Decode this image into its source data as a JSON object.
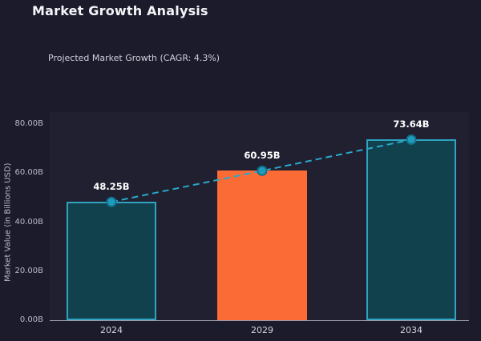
{
  "chart_data": {
    "type": "bar",
    "title": "Market Growth Analysis",
    "subtitle": "Projected Market Growth (CAGR: 4.3%)",
    "xlabel": "",
    "ylabel": "Market Value (in Billions USD)",
    "categories": [
      "2024",
      "2029",
      "2034"
    ],
    "values": [
      48.25,
      60.95,
      73.64
    ],
    "value_labels": [
      "48.25B",
      "60.95B",
      "73.64B"
    ],
    "yticks": [
      0,
      20,
      40,
      60,
      80
    ],
    "ytick_labels": [
      "0.00B",
      "20.00B",
      "40.00B",
      "60.00B",
      "80.00B"
    ],
    "ylim": [
      0,
      80
    ],
    "grid": false,
    "legend": false,
    "background_color": "#1b1b2c",
    "bar_colors": [
      "#12414e",
      "#fb6b35",
      "#12414e"
    ],
    "bar_border_colors": [
      "#2fa3bf",
      "#fb6b35",
      "#2fa3bf"
    ],
    "trend_line": true,
    "line_color": "#29a8c9",
    "marker_color": "#1f9cbd",
    "marker_ring_color": "#10718c",
    "value_label_color": "#ffffff"
  }
}
